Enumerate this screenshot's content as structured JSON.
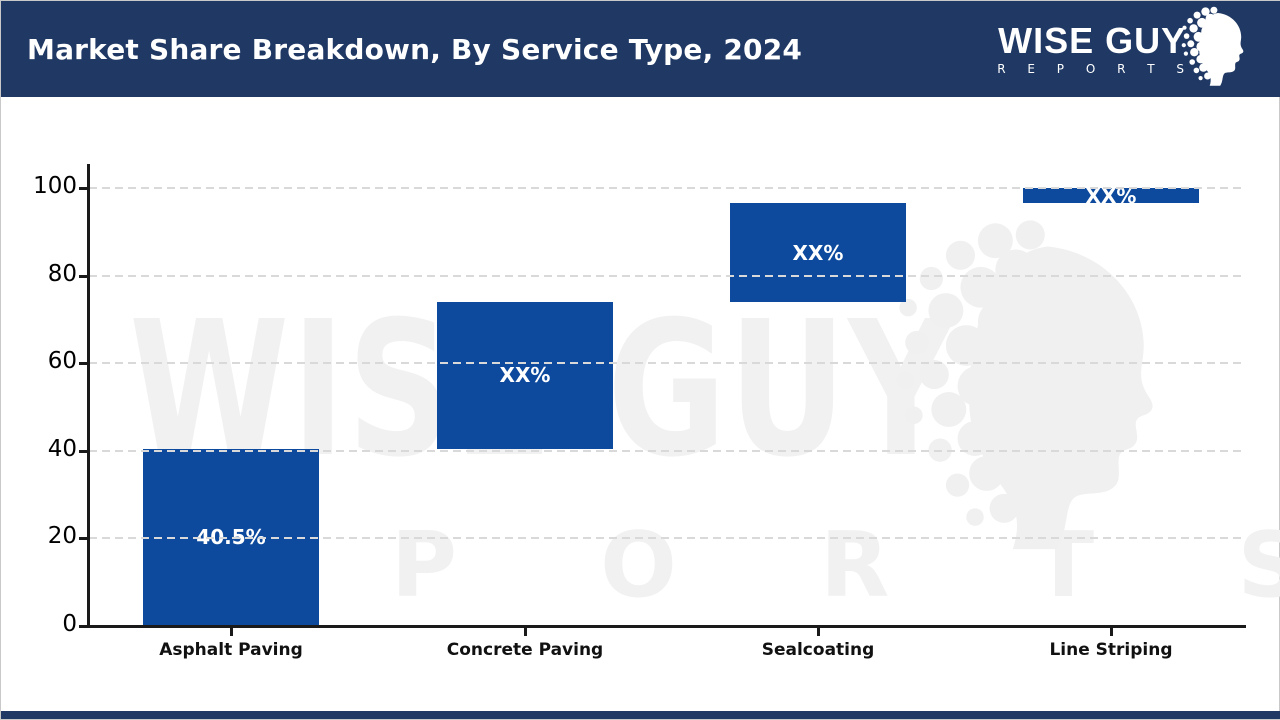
{
  "header": {
    "title": "Market Share Breakdown, By Service Type, 2024",
    "logo": {
      "line1": "WISE GUY",
      "line2": "R E P O R T S"
    }
  },
  "watermark": {
    "line1": "WISE GUY",
    "line2": "P O R T S"
  },
  "colors": {
    "header_bg": "#1f3864",
    "bar": "#0d4a9d",
    "gridline": "#d9d9d9",
    "axis": "#1a1a1a",
    "watermark": "#f1f1f1"
  },
  "chart_data": {
    "type": "bar",
    "subtype": "waterfall",
    "title": "Market Share Breakdown, By Service Type, 2024",
    "categories": [
      "Asphalt Paving",
      "Concrete Paving",
      "Sealcoating",
      "Line Striping"
    ],
    "series": [
      {
        "name": "Market Share",
        "segments": [
          {
            "category": "Asphalt Paving",
            "start": 0,
            "end": 40.5,
            "value": 40.5,
            "label": "40.5%"
          },
          {
            "category": "Concrete Paving",
            "start": 40.5,
            "end": 74,
            "value": 33.5,
            "label": "XX%"
          },
          {
            "category": "Sealcoating",
            "start": 74,
            "end": 96.5,
            "value": 22.5,
            "label": "XX%"
          },
          {
            "category": "Line Striping",
            "start": 96.5,
            "end": 100,
            "value": 3.5,
            "label": "XX%"
          }
        ]
      }
    ],
    "xlabel": "",
    "ylabel": "",
    "ylim": [
      0,
      100
    ],
    "yticks": [
      0,
      20,
      40,
      60,
      80,
      100
    ],
    "grid": "dashed horizontal, drawn above bars",
    "legend": "none"
  }
}
